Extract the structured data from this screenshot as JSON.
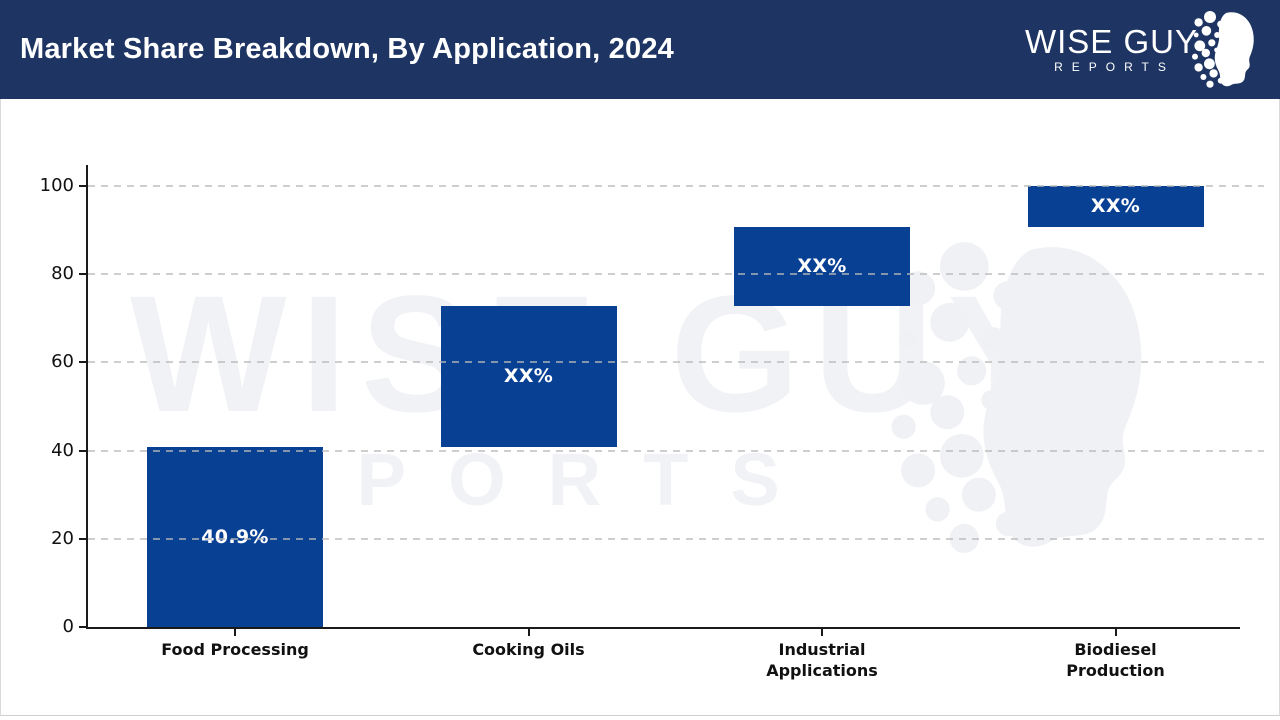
{
  "header": {
    "title": "Market Share Breakdown, By Application, 2024",
    "logo": {
      "line1": "WISE GUY",
      "line2": "REPORTS"
    }
  },
  "watermark": {
    "line1": "WISE GUY",
    "line2": "REPORTS"
  },
  "chart_data": {
    "type": "bar",
    "subtype": "waterfall",
    "title": "Market Share Breakdown, By Application, 2024",
    "categories": [
      "Food Processing",
      "Cooking Oils",
      "Industrial Applications",
      "Biodiesel Production"
    ],
    "segments": [
      {
        "category": "Food Processing",
        "start": 0,
        "end": 40.9,
        "label": "40.9%"
      },
      {
        "category": "Cooking Oils",
        "start": 40.9,
        "end": 72.8,
        "label": "XX%"
      },
      {
        "category": "Industrial Applications",
        "start": 72.8,
        "end": 90.8,
        "label": "XX%"
      },
      {
        "category": "Biodiesel Production",
        "start": 90.8,
        "end": 100,
        "label": "XX%"
      }
    ],
    "y_ticks": [
      0,
      20,
      40,
      60,
      80,
      100
    ],
    "ylim": [
      0,
      100
    ],
    "xlabel": "",
    "ylabel": "",
    "grid": "horizontal-dashed",
    "legend": "none",
    "bar_color": "#084194",
    "bar_label_color": "#ffffff"
  },
  "colors": {
    "header_bg": "#1e3563",
    "bar": "#084194",
    "axis": "#1a1a1a",
    "gridline": "#dcdcdc",
    "watermark": "#f1f2f5",
    "page_border": "#d9d9d9"
  }
}
